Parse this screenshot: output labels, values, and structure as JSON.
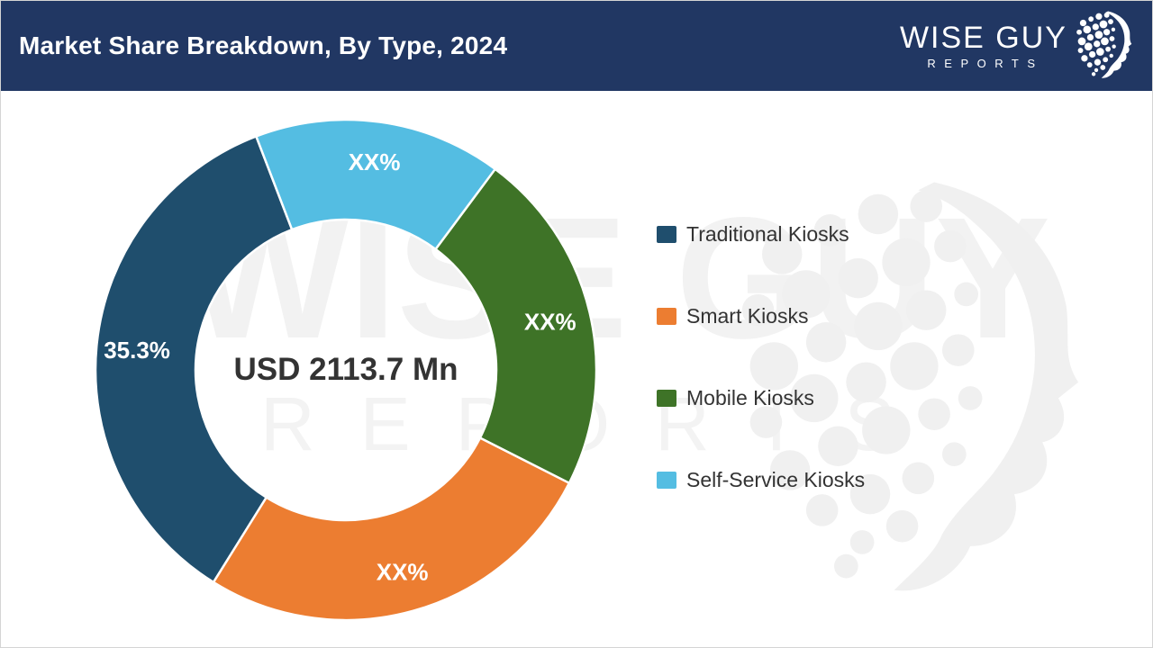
{
  "header": {
    "title": "Market Share Breakdown, By Type, 2024",
    "bg_color": "#213763",
    "logo": {
      "line1": "WISE GUY",
      "line2": "REPORTS"
    }
  },
  "watermark": {
    "line1": "WISE GUY",
    "line2": "REPORTS"
  },
  "chart_data": {
    "type": "pie",
    "subtype": "donut",
    "title": "Market Share Breakdown, By Type, 2024",
    "center_label": "USD 2113.7 Mn",
    "start_angle_deg_clockwise_from_top": 339,
    "legend_position": "right",
    "segments": [
      {
        "label": "Traditional Kiosks",
        "value_pct": 35.3,
        "display": "35.3%",
        "color": "#1f4e6d"
      },
      {
        "label": "Smart Kiosks",
        "value_pct": 26.4,
        "display": "XX%",
        "color": "#ec7d31"
      },
      {
        "label": "Mobile Kiosks",
        "value_pct": 22.3,
        "display": "XX%",
        "color": "#3e7327"
      },
      {
        "label": "Self-Service Kiosks",
        "value_pct": 16.0,
        "display": "XX%",
        "color": "#54bde2"
      }
    ]
  }
}
